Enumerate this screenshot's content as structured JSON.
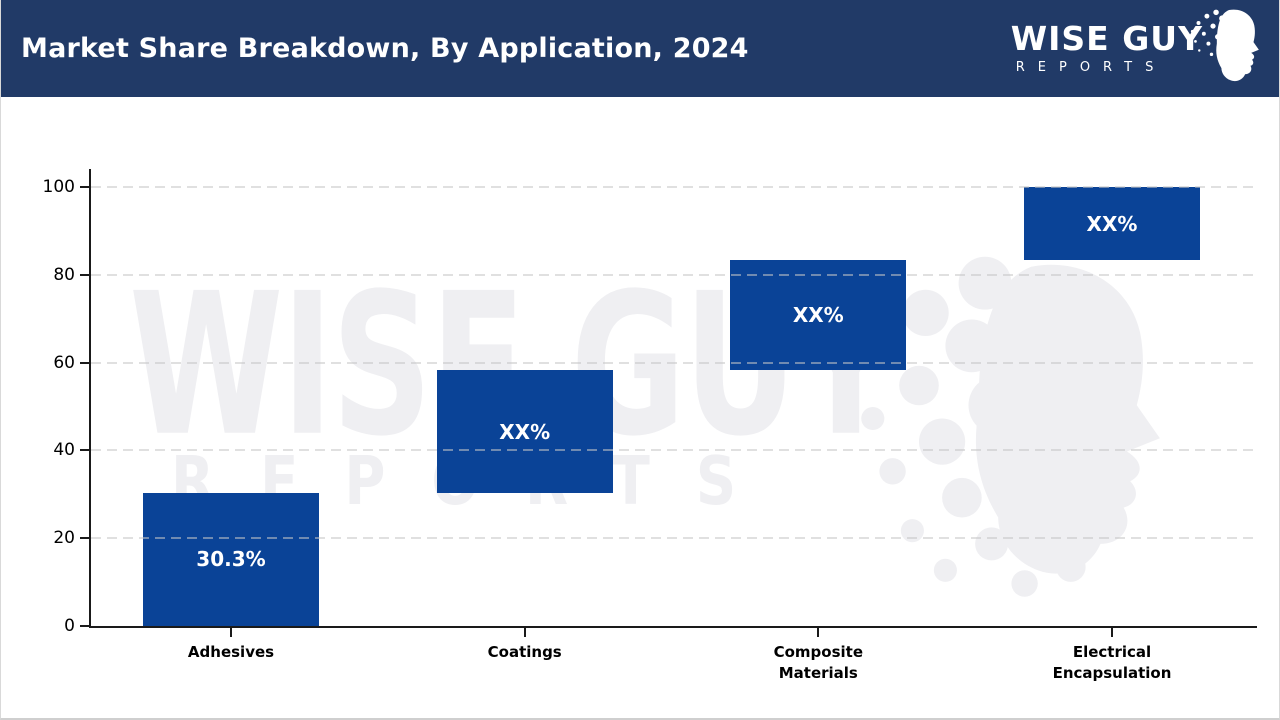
{
  "header": {
    "title": "Market Share Breakdown, By Application, 2024",
    "brand": {
      "line1": "WISE GUY",
      "line2": "REPORTS"
    }
  },
  "watermark": {
    "line1": "WISE GUY",
    "line2": "REPORTS"
  },
  "chart_data": {
    "type": "bar",
    "subtype": "waterfall",
    "title": "Market Share Breakdown, By Application, 2024",
    "categories": [
      "Adhesives",
      "Coatings",
      "Composite Materials",
      "Electrical Encapsulation"
    ],
    "series": [
      {
        "name": "Market share (%)",
        "segments": [
          {
            "category": "Adhesives",
            "start": 0,
            "end": 30.3,
            "label": "30.3%"
          },
          {
            "category": "Coatings",
            "start": 30.3,
            "end": 58.3,
            "label": "XX%"
          },
          {
            "category": "Composite Materials",
            "start": 58.3,
            "end": 83.3,
            "label": "XX%"
          },
          {
            "category": "Electrical Encapsulation",
            "start": 83.3,
            "end": 100,
            "label": "XX%"
          }
        ]
      }
    ],
    "ylim": [
      0,
      100
    ],
    "yticks": [
      0,
      20,
      40,
      60,
      80,
      100
    ],
    "grid": "horizontal-dashed",
    "legend": "none"
  },
  "colors": {
    "header_bg": "#213A67",
    "bar": "#0A4397",
    "bar_label": "#FFFFFF",
    "axis": "#1A1A1A",
    "grid": "#C6C6C6",
    "watermark": "#EFEFF2",
    "page_border": "#D9D9D9"
  }
}
